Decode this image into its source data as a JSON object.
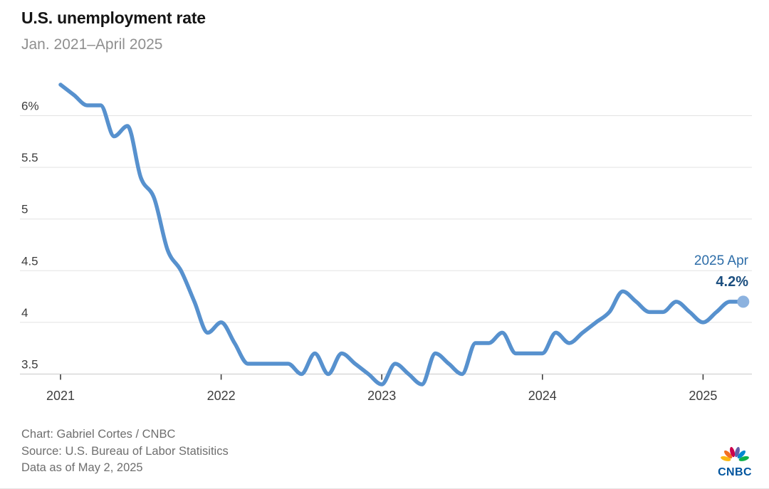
{
  "header": {
    "title": "U.S. unemployment rate",
    "subtitle": "Jan. 2021–April 2025"
  },
  "chart_data": {
    "type": "line",
    "title": "U.S. unemployment rate",
    "subtitle": "Jan. 2021–April 2025",
    "unit": "%",
    "x_start": "2021-01",
    "x_frequency": "monthly",
    "values": [
      6.3,
      6.2,
      6.1,
      6.1,
      5.8,
      5.9,
      5.4,
      5.2,
      4.7,
      4.5,
      4.2,
      3.9,
      4.0,
      3.8,
      3.6,
      3.6,
      3.6,
      3.6,
      3.5,
      3.7,
      3.5,
      3.7,
      3.6,
      3.5,
      3.4,
      3.6,
      3.5,
      3.4,
      3.7,
      3.6,
      3.5,
      3.8,
      3.8,
      3.9,
      3.7,
      3.7,
      3.7,
      3.9,
      3.8,
      3.9,
      4.0,
      4.1,
      4.3,
      4.2,
      4.1,
      4.1,
      4.2,
      4.1,
      4.0,
      4.1,
      4.2,
      4.2
    ],
    "last_point": {
      "x": "2025-04",
      "value": 4.2
    },
    "yticks": [
      {
        "v": 6.0,
        "label": "6%"
      },
      {
        "v": 5.5,
        "label": "5.5"
      },
      {
        "v": 5.0,
        "label": "5"
      },
      {
        "v": 4.5,
        "label": "4.5"
      },
      {
        "v": 4.0,
        "label": "4"
      },
      {
        "v": 3.5,
        "label": "3.5"
      }
    ],
    "xticks": [
      {
        "i": 0,
        "label": "2021"
      },
      {
        "i": 12,
        "label": "2022"
      },
      {
        "i": 24,
        "label": "2023"
      },
      {
        "i": 36,
        "label": "2024"
      },
      {
        "i": 48,
        "label": "2025"
      }
    ],
    "ylim": [
      3.3,
      6.4
    ],
    "grid": true,
    "legend": "none",
    "xlabel": "",
    "ylabel": ""
  },
  "annotation": {
    "date_label": "2025 Apr",
    "value_label": "4.2%"
  },
  "footer": {
    "credit": "Chart: Gabriel Cortes / CNBC",
    "source": "Source: U.S. Bureau of Labor Statisitics",
    "as_of": "Data as of May 2, 2025",
    "logo_text": "CNBC"
  },
  "colors": {
    "line": "#5791CE",
    "dot": "#8CB2DF",
    "grid": "#e3e3e3",
    "axis_line": "#c9c9c9",
    "tick_mark": "#3f3f3f",
    "axis_text": "#3d3d3d",
    "title": "#151515",
    "subtitle": "#8f8f8f",
    "annotation_date": "#2d6da8",
    "annotation_value": "#1b4e7f",
    "footer_text": "#6e6e6e",
    "logo_wordmark": "#00549e",
    "peacock_feathers": [
      "#FCB711",
      "#F37021",
      "#CC004C",
      "#6460AA",
      "#0089D0",
      "#0DB14B"
    ]
  }
}
